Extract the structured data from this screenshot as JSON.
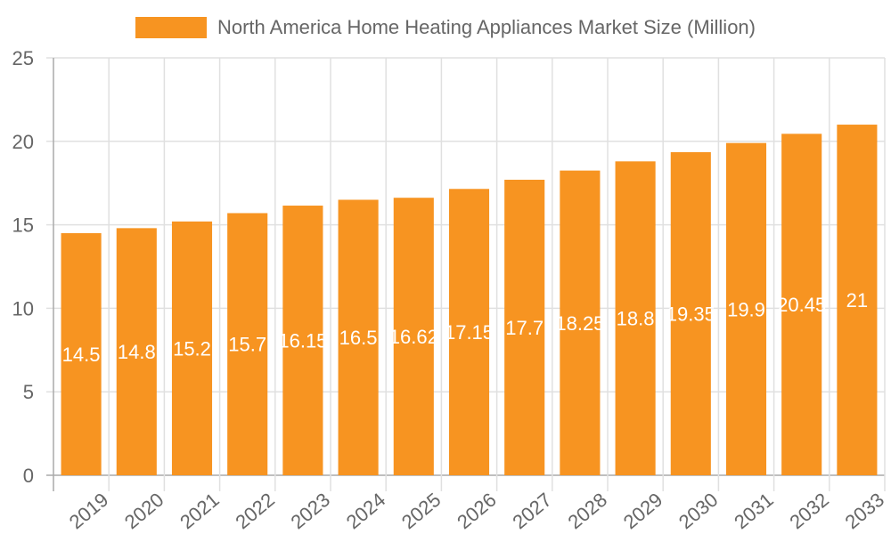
{
  "chart_data": {
    "type": "bar",
    "title": "",
    "legend": [
      "North America Home Heating Appliances Market Size (Million)"
    ],
    "legend_position": "top",
    "xlabel": "",
    "ylabel": "",
    "ylim": [
      0,
      25
    ],
    "yticks": [
      0,
      5,
      10,
      15,
      20,
      25
    ],
    "grid": true,
    "categories": [
      "2019",
      "2020",
      "2021",
      "2022",
      "2023",
      "2024",
      "2025",
      "2026",
      "2027",
      "2028",
      "2029",
      "2030",
      "2031",
      "2032",
      "2033"
    ],
    "series": [
      {
        "name": "North America Home Heating Appliances Market Size (Million)",
        "color": "#F79421",
        "values": [
          14.5,
          14.8,
          15.2,
          15.7,
          16.15,
          16.5,
          16.62,
          17.15,
          17.7,
          18.25,
          18.8,
          19.35,
          19.9,
          20.45,
          21
        ]
      }
    ],
    "data_labels": [
      "14.5",
      "14.8",
      "15.2",
      "15.7",
      "16.15",
      "16.5",
      "16.62",
      "17.15",
      "17.7",
      "18.25",
      "18.8",
      "19.35",
      "19.9",
      "20.45",
      "21"
    ]
  },
  "colors": {
    "bar": "#F79421",
    "grid": "#e0e0e0",
    "axis": "#aaaaaa",
    "tick_text": "#666666",
    "data_label_text": "#ffffff"
  }
}
